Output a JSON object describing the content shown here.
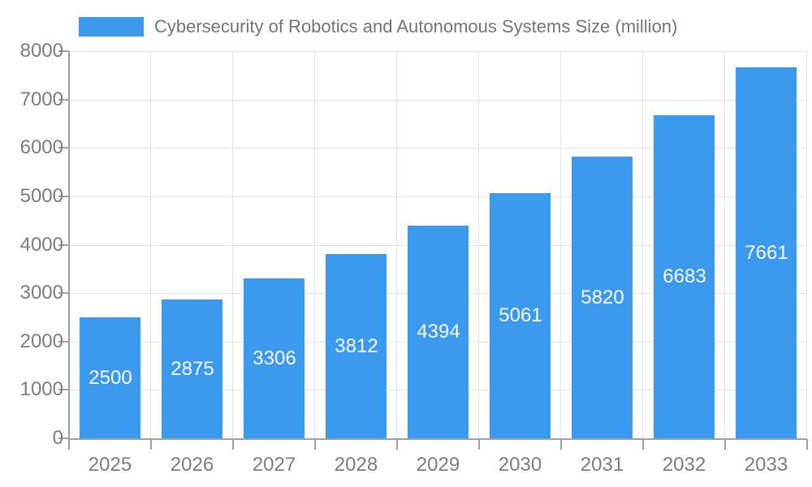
{
  "chart_data": {
    "type": "bar",
    "title": "Cybersecurity of Robotics and Autonomous Systems Size (million)",
    "series_name": "Cybersecurity of Robotics and Autonomous Systems Size (million)",
    "categories": [
      "2025",
      "2026",
      "2027",
      "2028",
      "2029",
      "2030",
      "2031",
      "2032",
      "2033"
    ],
    "values": [
      2500,
      2875,
      3306,
      3812,
      4394,
      5061,
      5820,
      6683,
      7661
    ],
    "bar_value_labels": [
      "2500",
      "2875",
      "3306",
      "3812",
      "4394",
      "5061",
      "5820",
      "6683",
      "7661"
    ],
    "xlabel": "",
    "ylabel": "",
    "ylim": [
      0,
      8000
    ],
    "yticks": [
      0,
      1000,
      2000,
      3000,
      4000,
      5000,
      6000,
      7000,
      8000
    ],
    "ytick_labels": [
      "0",
      "1000",
      "2000",
      "3000",
      "4000",
      "5000",
      "6000",
      "7000",
      "8000"
    ],
    "grid": true,
    "legend_position": "top-left",
    "colors": {
      "bar": "#3b99ee",
      "bar_label_text": "#ffffff",
      "grid": "#e4e4e4",
      "axis": "#a0a0a0",
      "tick_text": "#7d7d7d",
      "legend_text": "#757575",
      "background": "#ffffff"
    }
  }
}
